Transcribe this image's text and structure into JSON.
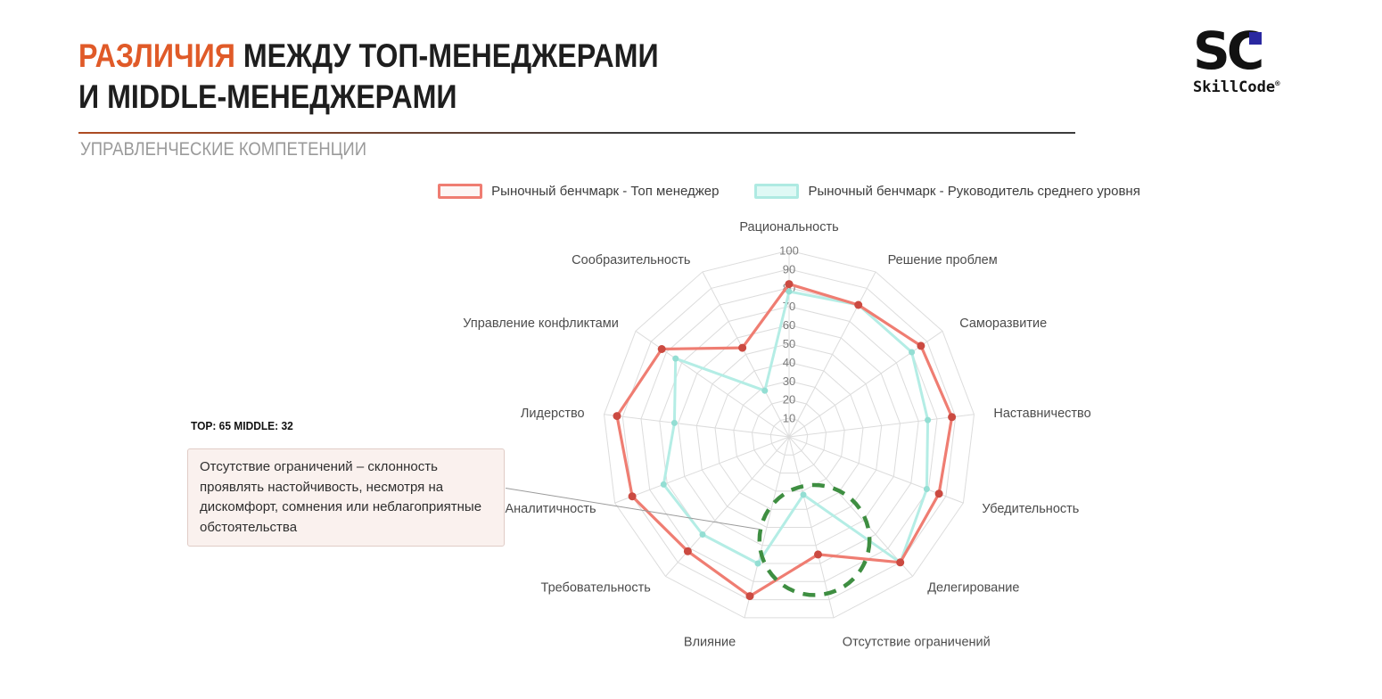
{
  "header": {
    "title_accent": "РАЗЛИЧИЯ",
    "title_line1_rest": "МЕЖДУ ТОП-МЕНЕДЖЕРАМИ",
    "title_line2": "И MIDDLE-МЕНЕДЖЕРАМИ",
    "subtitle": "УПРАВЛЕНЧЕСКИЕ КОМПЕТЕНЦИИ",
    "accent_color": "#e05a28"
  },
  "logo": {
    "mark": "SC",
    "name": "SkillCode",
    "registered": "®",
    "square_color": "#2a28a0"
  },
  "legend": {
    "items": [
      {
        "label": "Рыночный бенчмарк - Топ менеджер",
        "swatch_border": "#ef7d72",
        "swatch_fill": "#fdf6f5"
      },
      {
        "label": "Рыночный бенчмарк - Руководитель среднего уровня",
        "swatch_border": "#aeeae2",
        "swatch_fill": "#dff9f5"
      }
    ]
  },
  "annotation": {
    "header": "TOP: 65 MIDDLE: 32",
    "text": "Отсутствие ограничений – склонность проявлять настойчивость, несмотря на дискомфорт, сомнения или неблагоприятные обстоятельства"
  },
  "chart_data": {
    "type": "radar",
    "categories": [
      "Рациональность",
      "Решение проблем",
      "Саморазвитие",
      "Наставничество",
      "Убедительность",
      "Делегирование",
      "Отсутствие ограничений",
      "Влияние",
      "Требовательность",
      "Аналитичность",
      "Лидерство",
      "Управление конфликтами",
      "Сообразительность"
    ],
    "series": [
      {
        "name": "Рыночный бенчмарк - Топ менеджер",
        "color": "#ef7d72",
        "point_color": "#cb4a41",
        "line_width": 3.2,
        "point_radius": 4.5,
        "values": [
          82,
          80,
          86,
          88,
          86,
          90,
          65,
          88,
          82,
          90,
          93,
          83,
          54
        ]
      },
      {
        "name": "Рыночный бенчмарк - Руководитель среднего уровня",
        "color": "#b4ede5",
        "point_color": "#93ded3",
        "line_width": 3,
        "point_radius": 3.5,
        "values": [
          78,
          80,
          80,
          75,
          79,
          90,
          32,
          70,
          70,
          72,
          62,
          74,
          28
        ]
      }
    ],
    "scale": {
      "min": 0,
      "max": 100,
      "step": 10,
      "tick_labels": [
        "100",
        "90",
        "80",
        "70",
        "60",
        "50",
        "40",
        "30",
        "20",
        "10"
      ]
    },
    "grid_color": "#dcdcdc",
    "legend_position": "top",
    "highlight_circle": {
      "axis": "Отсутствие ограничений",
      "axis_index": 6,
      "center_value": 57,
      "radius_value": 29.5,
      "color": "#3e8e41",
      "style": "dashed"
    }
  }
}
